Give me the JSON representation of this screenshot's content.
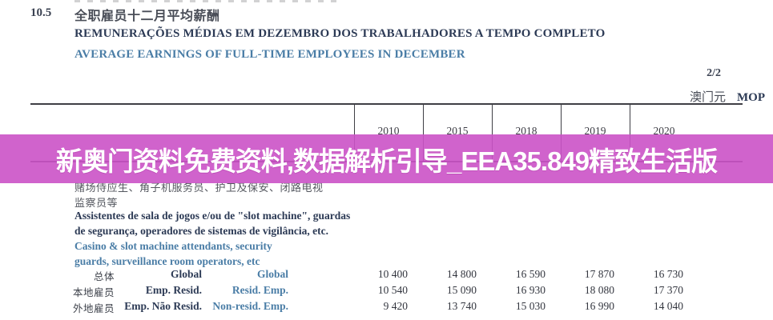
{
  "header": {
    "section_no": "10.5",
    "title_zh": "全职雇员十二月平均薪酬",
    "title_pt": "REMUNERAÇÕES MÉDIAS EM DEZEMBRO DOS TRABALHADORES A TEMPO COMPLETO",
    "title_en": "AVERAGE EARNINGS OF FULL-TIME EMPLOYEES IN DECEMBER",
    "page_no": "2/2",
    "unit_zh": "澳门元",
    "unit_en": "MOP"
  },
  "banner": {
    "text": "新奥门资料免费资料,数据解析引导_EEA35.849精致生活版",
    "bg_color": "#cb52c7",
    "text_color": "#ffffff"
  },
  "table": {
    "years": [
      "2010",
      "2015",
      "2018",
      "2019",
      "2020"
    ],
    "category": {
      "zh_line1": "赌场侍应生、角子机服务员、护卫及保安、闭路电视",
      "zh_line2": "监察员等",
      "pt_line1": "Assistentes de sala de jogos e/ou de \"slot machine\", guardas",
      "pt_line2": "de segurança, operadores de sistemas de vigilância, etc.",
      "en_line1": "Casino & slot machine attendants, security",
      "en_line2": "guards, surveillance room operators, etc"
    },
    "rows": [
      {
        "zh": "总体",
        "pt": "Global",
        "en": "Global",
        "values": [
          "10 400",
          "14 800",
          "16 590",
          "17 870",
          "16 730"
        ]
      },
      {
        "zh": "本地雇员",
        "pt": "Emp. Resid.",
        "en": "Resid. Emp.",
        "values": [
          "10 540",
          "15 090",
          "16 930",
          "18 080",
          "17 370"
        ]
      },
      {
        "zh": "外地雇员",
        "pt": "Emp. Não Resid.",
        "en": "Non-resid. Emp.",
        "values": [
          "9 420",
          "13 740",
          "15 030",
          "16 990",
          "14 040"
        ]
      }
    ]
  }
}
